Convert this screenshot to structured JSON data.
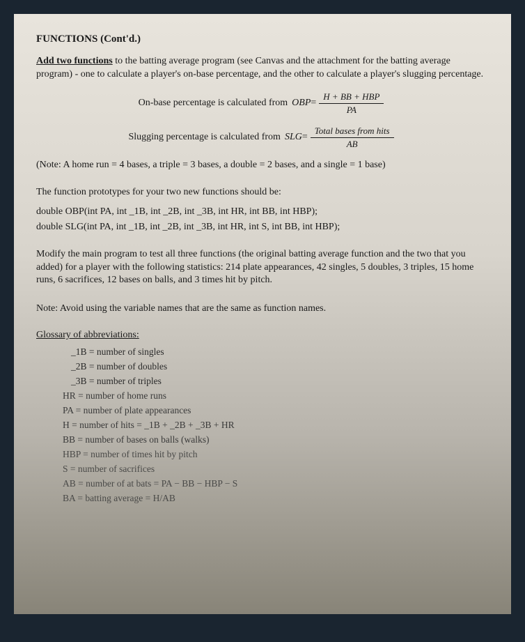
{
  "title": "FUNCTIONS (Cont'd.)",
  "intro": {
    "lead": "Add two functions",
    "rest": " to the batting average program (see Canvas and the attachment for the batting average program) - one to calculate a player's on-base percentage, and the other to calculate a player's slugging percentage."
  },
  "formula1": {
    "label": "On-base percentage is calculated from ",
    "lhs": "OBP",
    "eq": " = ",
    "num": "H + BB + HBP",
    "den": "PA"
  },
  "formula2": {
    "label": "Slugging percentage is calculated from ",
    "lhs": "SLG",
    "eq": " = ",
    "num": "Total bases from hits",
    "den": "AB"
  },
  "basesNote": "(Note: A home run = 4 bases, a triple = 3 bases, a double = 2 bases, and a single = 1 base)",
  "protoHeading": "The function prototypes for your two new functions should be:",
  "proto1": "double OBP(int PA, int _1B, int _2B, int _3B, int HR, int BB, int HBP);",
  "proto2": "double SLG(int PA, int _1B, int _2B, int _3B, int HR, int S, int BB, int HBP);",
  "modifyPara": "Modify the main program to test all three functions (the original batting average function and the two that you added) for a player with the following statistics: 214 plate appearances, 42 singles, 5 doubles, 3 triples, 15 home runs, 6 sacrifices, 12 bases on balls, and 3 times hit by pitch.",
  "avoidNote": "Note: Avoid using the variable names that are the same as function names.",
  "glossaryTitle": "Glossary of abbreviations:",
  "glossary": {
    "g1": "_1B = number of singles",
    "g2": "_2B = number of doubles",
    "g3": "_3B = number of triples",
    "g4": "HR = number of home runs",
    "g5": "PA = number of plate appearances",
    "g6": "H = number of hits = _1B + _2B + _3B + HR",
    "g7": "BB = number of bases on balls (walks)",
    "g8": "HBP = number of times hit by pitch",
    "g9": "S = number of sacrifices",
    "g10": "AB = number of at bats = PA − BB − HBP − S",
    "g11": "BA = batting average = H/AB"
  }
}
